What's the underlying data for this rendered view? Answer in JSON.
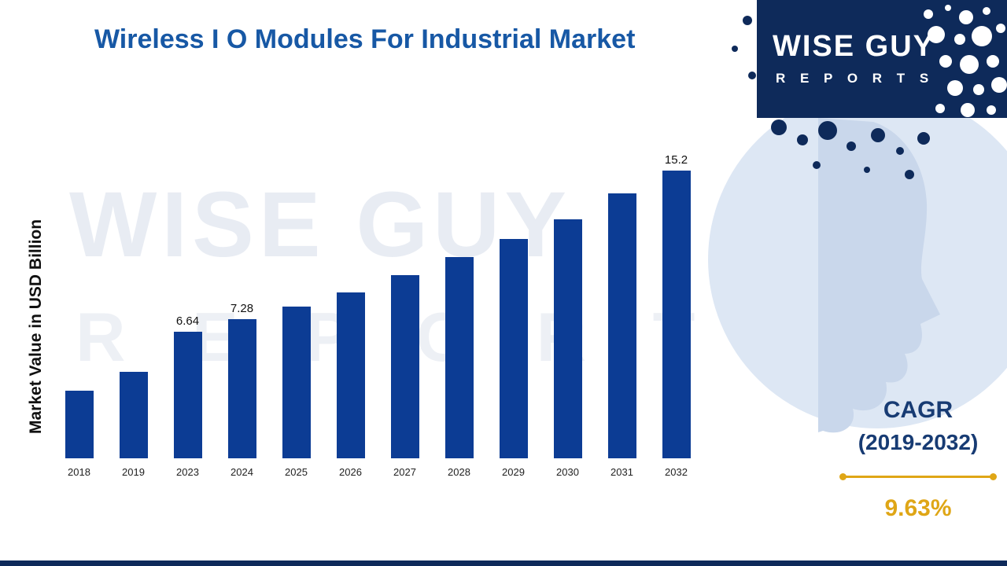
{
  "header": {
    "title": "Wireless I O Modules For Industrial Market"
  },
  "watermark": {
    "line1": "WISE GUY",
    "line2": "R E P O R T S"
  },
  "logo": {
    "line1": "WISE GUY",
    "line2": "R E P O R T S"
  },
  "cagr": {
    "label": "CAGR",
    "range": "(2019-2032)",
    "value": "9.63%"
  },
  "colors": {
    "bar": "#0c3c94",
    "navy": "#0e2a5a",
    "gold": "#dfa616",
    "title": "#1758a5",
    "cagr_text": "#173b73",
    "watermark": "#2a4e8f",
    "circle": "#dde7f4",
    "face": "#c9d7eb"
  },
  "chart_data": {
    "type": "bar",
    "title": "Wireless I O Modules For Industrial Market",
    "xlabel": "",
    "ylabel": "Market Value in USD Billion",
    "unit": "USD Billion",
    "categories": [
      "2018",
      "2019",
      "2023",
      "2024",
      "2025",
      "2026",
      "2027",
      "2028",
      "2029",
      "2030",
      "2031",
      "2032"
    ],
    "values": [
      3.55,
      4.55,
      6.64,
      7.28,
      7.95,
      8.7,
      9.6,
      10.55,
      11.5,
      12.55,
      13.9,
      15.2
    ],
    "labels": [
      "",
      "",
      "6.64",
      "7.28",
      "",
      "",
      "",
      "",
      "",
      "",
      "",
      "15.2"
    ],
    "ylim": [
      0,
      16
    ],
    "grid": false,
    "legend": false,
    "bar_color": "#0c3c94"
  }
}
